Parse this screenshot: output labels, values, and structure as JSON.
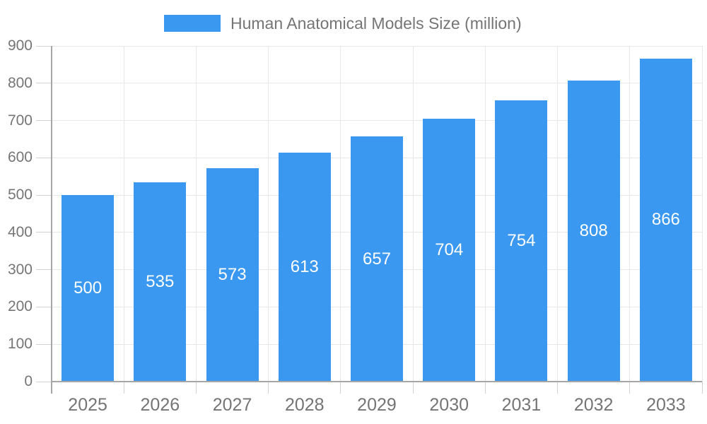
{
  "legend": {
    "label": "Human Anatomical Models Size (million)"
  },
  "chart_data": {
    "type": "bar",
    "title": "Human Anatomical Models Size (million)",
    "series_name": "Human Anatomical Models Size (million)",
    "categories": [
      "2025",
      "2026",
      "2027",
      "2028",
      "2029",
      "2030",
      "2031",
      "2032",
      "2033"
    ],
    "values": [
      500,
      535,
      573,
      613,
      657,
      704,
      754,
      808,
      866
    ],
    "xlabel": "",
    "ylabel": "",
    "ylim": [
      0,
      900
    ],
    "ytick_step": 100,
    "y_tick_labels": [
      "0",
      "100",
      "200",
      "300",
      "400",
      "500",
      "600",
      "700",
      "800",
      "900"
    ],
    "grid": true,
    "legend_position": "top",
    "bar_label_position": "inside-middle",
    "colors": {
      "bar": "#3B98F0",
      "bar_label": "#FFFFFF",
      "grid": "#E7E7E7",
      "tick": "#D2D2D2",
      "axis": "#A6A6A6",
      "text": "#757575"
    }
  }
}
